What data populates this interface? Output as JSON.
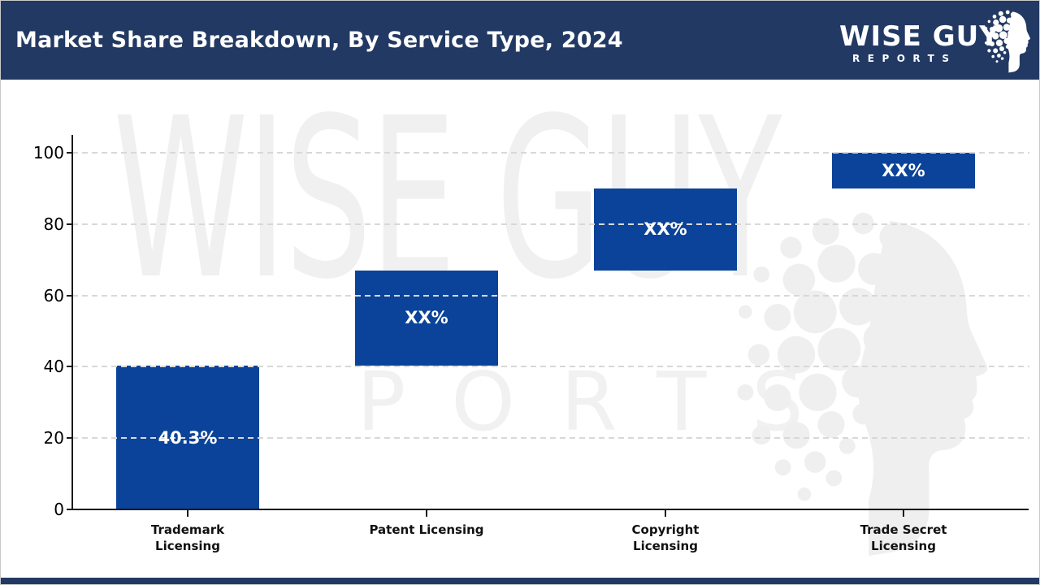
{
  "header": {
    "title": "Market Share Breakdown, By Service Type, 2024",
    "logo": {
      "line1": "WISE GUY",
      "line2": "REPORTS"
    }
  },
  "watermark": {
    "line1": "WISE GUY",
    "line2": "PORTS"
  },
  "colors": {
    "header_bg": "#223963",
    "bar": "#0a4399",
    "bar_label": "#ffffff",
    "grid": "#d8d8d8",
    "axis": "#1a1a1a",
    "watermark": "#f0f0f0"
  },
  "chart_data": {
    "type": "bar",
    "subtype": "waterfall",
    "title": "Market Share Breakdown, By Service Type, 2024",
    "categories": [
      "Trademark Licensing",
      "Patent Licensing",
      "Copyright Licensing",
      "Trade Secret Licensing"
    ],
    "category_labels": [
      "Trademark\nLicensing",
      "Patent Licensing",
      "Copyright\nLicensing",
      "Trade Secret\nLicensing"
    ],
    "segments": [
      {
        "category": "Trademark Licensing",
        "start": 0,
        "end": 40.3,
        "label": "40.3%"
      },
      {
        "category": "Patent Licensing",
        "start": 40.3,
        "end": 67,
        "label": "XX%"
      },
      {
        "category": "Copyright Licensing",
        "start": 67,
        "end": 90,
        "label": "XX%"
      },
      {
        "category": "Trade Secret Licensing",
        "start": 90,
        "end": 100,
        "label": "XX%"
      }
    ],
    "ylabel": "",
    "xlabel": "",
    "ylim": [
      0,
      100
    ],
    "yticks": [
      0,
      20,
      40,
      60,
      80,
      100
    ],
    "grid": "horizontal-dashed",
    "legend": "none"
  }
}
